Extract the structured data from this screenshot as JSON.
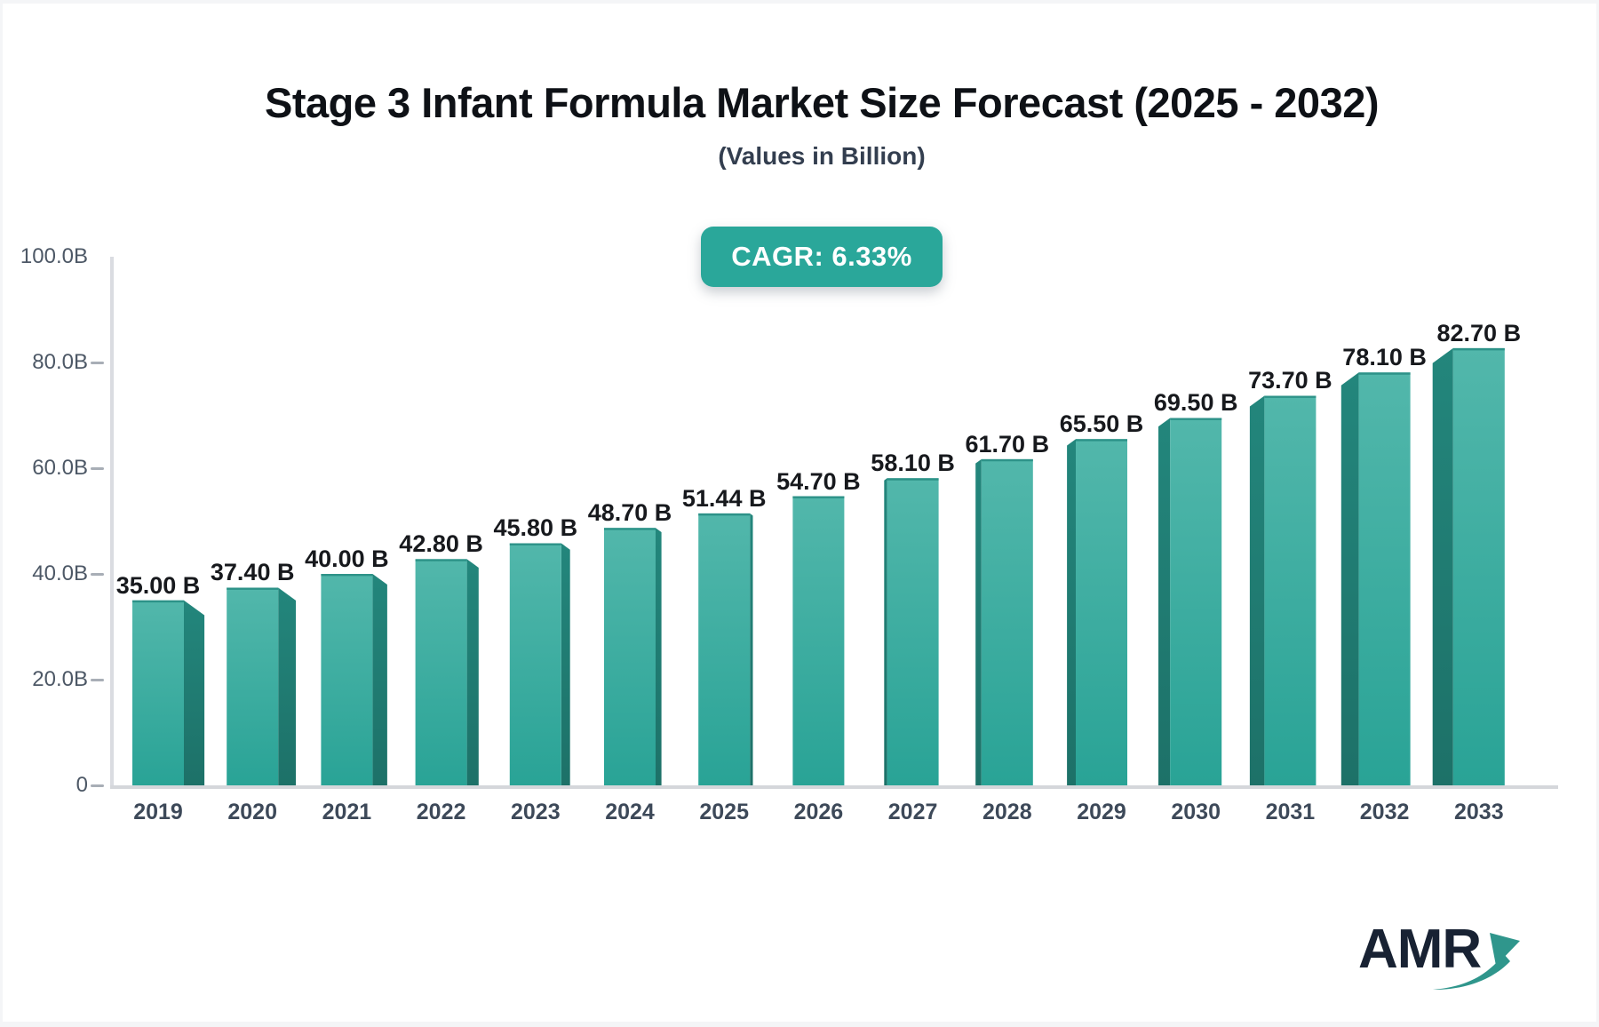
{
  "header": {
    "title": "Stage 3 Infant Formula Market Size Forecast (2025 - 2032)",
    "subtitle": "(Values in Billion)",
    "cagr_badge": "CAGR: 6.33%"
  },
  "logo": {
    "text": "AMR"
  },
  "colors": {
    "accent_teal": "#2aa79a",
    "bar_face_top": "#52b7ab",
    "bar_face_bottom": "#29a396",
    "bar_side_top": "#23867c",
    "bar_side_bottom": "#1d7168",
    "bar_top_edge": "#2d9288",
    "axis_line": "#d5d7db",
    "axis_text": "#4d5866",
    "badge_bg": "#2aa79a",
    "badge_text": "#ffffff",
    "title_text": "#0e1116",
    "logo_text": "#182233",
    "logo_arrow": "#2f968c"
  },
  "chart_data": {
    "type": "bar",
    "title": "Stage 3 Infant Formula Market Size Forecast (2025 - 2032)",
    "subtitle": "(Values in Billion)",
    "annotation": "CAGR: 6.33%",
    "categories": [
      "2019",
      "2020",
      "2021",
      "2022",
      "2023",
      "2024",
      "2025",
      "2026",
      "2027",
      "2028",
      "2029",
      "2030",
      "2031",
      "2032",
      "2033"
    ],
    "values": [
      35.0,
      37.4,
      40.0,
      42.8,
      45.8,
      48.7,
      51.44,
      54.7,
      58.1,
      61.7,
      65.5,
      69.5,
      73.7,
      78.1,
      82.7
    ],
    "value_labels": [
      "35.00 B",
      "37.40 B",
      "40.00 B",
      "42.80 B",
      "45.80 B",
      "48.70 B",
      "51.44 B",
      "54.70 B",
      "58.10 B",
      "61.70 B",
      "65.50 B",
      "69.50 B",
      "73.70 B",
      "78.10 B",
      "82.70 B"
    ],
    "xlabel": "",
    "ylabel": "",
    "ylim": [
      0,
      100
    ],
    "y_ticks": [
      {
        "label": "100.0B",
        "value": 100
      },
      {
        "label": "80.0B",
        "value": 80
      },
      {
        "label": "60.0B",
        "value": 60
      },
      {
        "label": "40.0B",
        "value": 40
      },
      {
        "label": "20.0B",
        "value": 20
      },
      {
        "label": "0",
        "value": 0
      }
    ],
    "grid": false,
    "legend": false,
    "bar_style": "3d-perspective-from-center"
  }
}
